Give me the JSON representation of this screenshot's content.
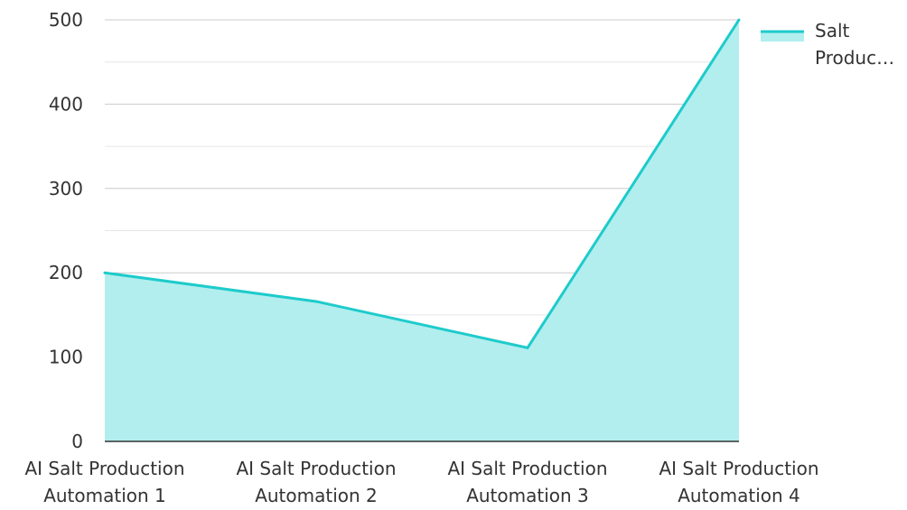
{
  "chart_data": {
    "type": "area",
    "categories": [
      "AI Salt Production Automation 1",
      "AI Salt Production Automation 2",
      "AI Salt Production Automation 3",
      "AI Salt Production Automation 4"
    ],
    "category_lines": [
      [
        "AI Salt Production",
        "Automation 1"
      ],
      [
        "AI Salt Production",
        "Automation 2"
      ],
      [
        "AI Salt Production",
        "Automation 3"
      ],
      [
        "AI Salt Production",
        "Automation 4"
      ]
    ],
    "series": [
      {
        "name": "Salt Produc…",
        "values": [
          200,
          166,
          111,
          500
        ]
      }
    ],
    "legend_lines": [
      "Salt",
      "Produc…"
    ],
    "ylim": [
      0,
      500
    ],
    "yticks": [
      0,
      100,
      200,
      300,
      400,
      500
    ],
    "grid": true,
    "legend_position": "top-right",
    "colors": {
      "line": "#1ECBCB",
      "fill": "#B2EEEE",
      "grid_major": "#CCCCCC",
      "grid_minor": "#E6E6E6",
      "axis": "#333333"
    }
  }
}
